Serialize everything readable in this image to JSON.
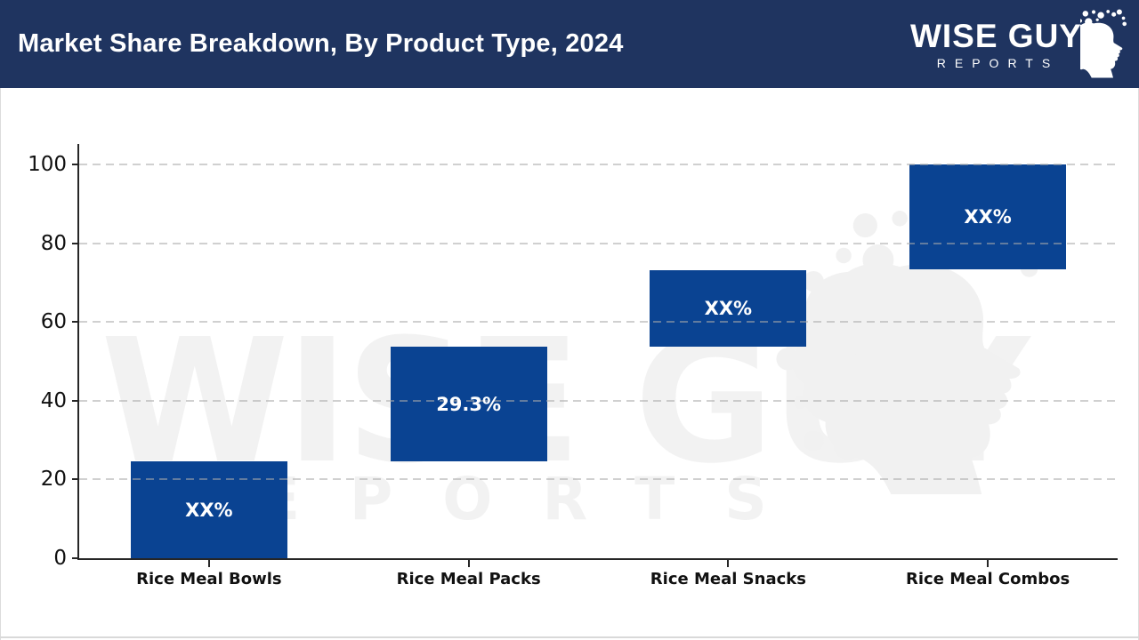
{
  "header": {
    "title": "Market Share Breakdown, By Product Type, 2024",
    "bg_color": "#1f3460",
    "logo": {
      "name": "WISE GUY",
      "sub": "REPORTS"
    }
  },
  "watermark": {
    "line1": "WISE GUY",
    "line2": "REPORTS"
  },
  "chart_data": {
    "type": "bar",
    "subtype": "floating-segment-bars (stacked market-share breakdown)",
    "title": "Market Share Breakdown, By Product Type, 2024",
    "categories": [
      "Rice Meal Bowls",
      "Rice Meal Packs",
      "Rice Meal Snacks",
      "Rice Meal Combos"
    ],
    "segments": [
      {
        "category": "Rice Meal Bowls",
        "from": 0,
        "to": 24.5,
        "label": "XX%"
      },
      {
        "category": "Rice Meal Packs",
        "from": 24.5,
        "to": 53.8,
        "label": "29.3%"
      },
      {
        "category": "Rice Meal Snacks",
        "from": 53.8,
        "to": 73.2,
        "label": "XX%"
      },
      {
        "category": "Rice Meal Combos",
        "from": 73.3,
        "to": 100,
        "label": "XX%"
      }
    ],
    "yticks": [
      0,
      20,
      40,
      60,
      80,
      100
    ],
    "ylim": [
      0,
      105
    ],
    "xlabel": "",
    "ylabel": "",
    "grid": "horizontal dashed, drawn over bars",
    "legend": "none",
    "bar_color": "#0a4392",
    "bar_label_color": "#ffffff",
    "axis_color": "#262626",
    "tick_label_color": "#111111"
  }
}
